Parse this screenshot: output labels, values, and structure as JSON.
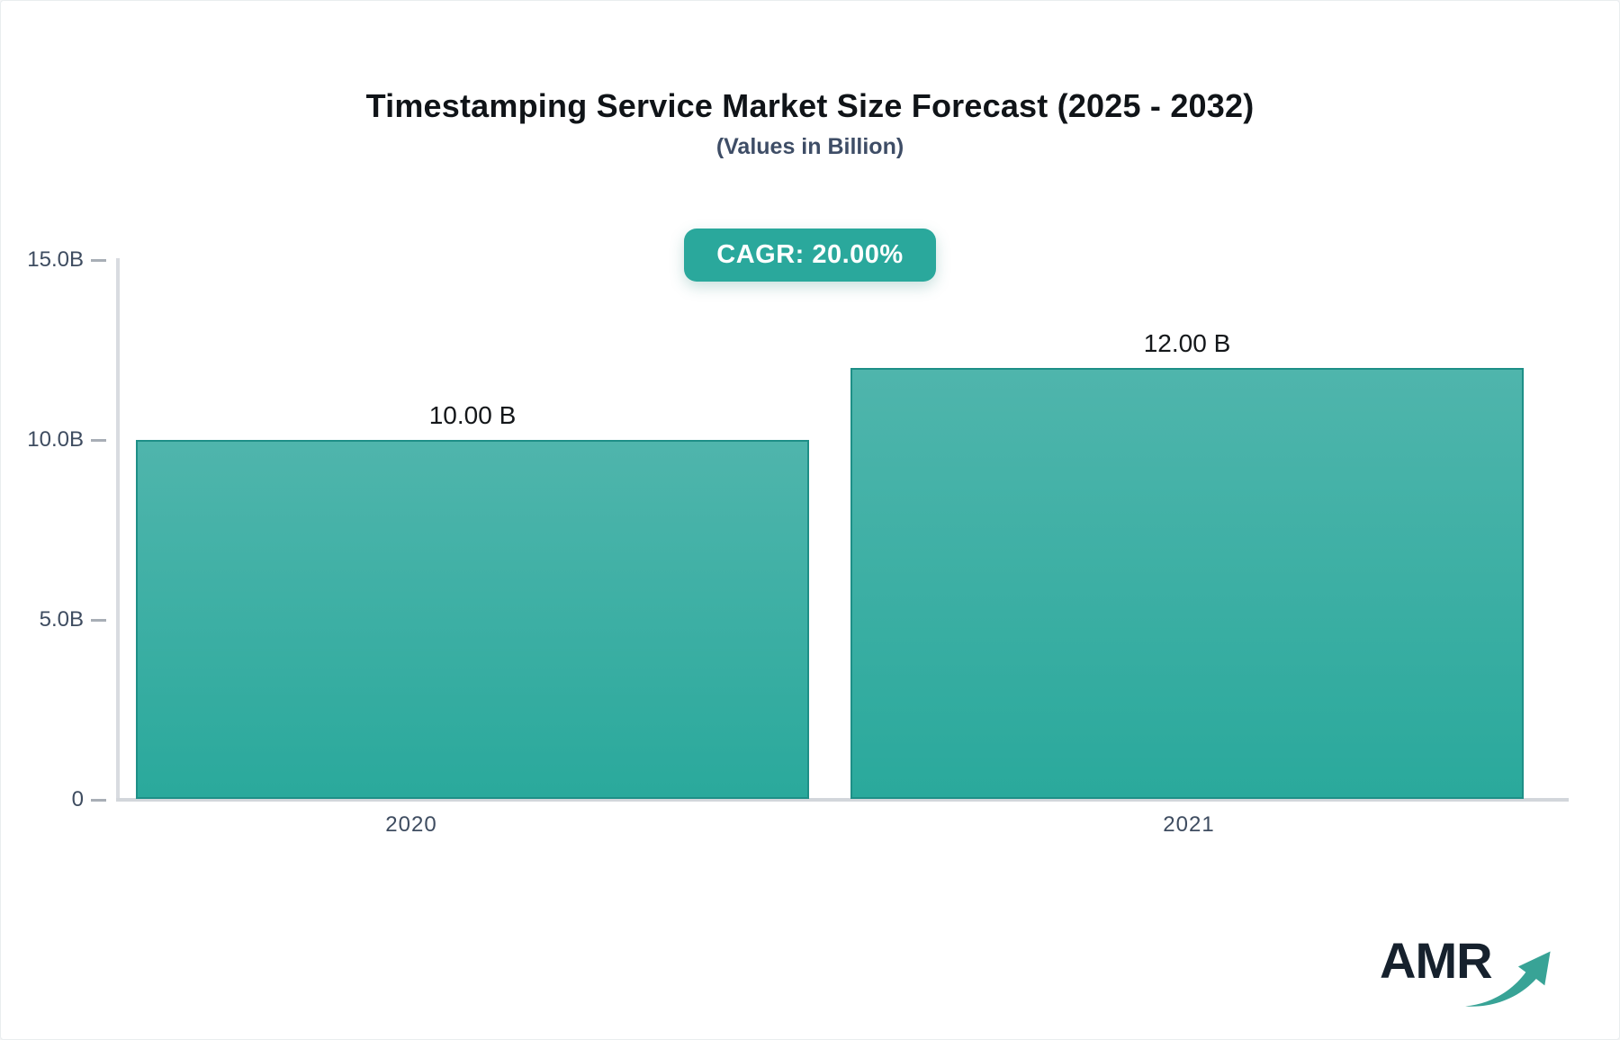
{
  "header": {
    "title": "Timestamping Service Market Size Forecast (2025 - 2032)",
    "subtitle": "(Values in Billion)",
    "cagr_badge": {
      "label": "CAGR: 20.00%",
      "background": "#2aa89c",
      "text_color": "#ffffff"
    }
  },
  "chart_data": {
    "type": "bar",
    "title": "Timestamping Service Market Size Forecast (2025 - 2032)",
    "subtitle": "(Values in Billion)",
    "unit": "Billion",
    "cagr_percent": 20.0,
    "categories": [
      "2020",
      "2021"
    ],
    "values": [
      10.0,
      12.0
    ],
    "value_labels": [
      "10.00 B",
      "12.00 B"
    ],
    "ylim": [
      0,
      15
    ],
    "yticks": [
      0,
      5,
      10,
      15
    ],
    "ytick_labels": [
      "0",
      "5.0B",
      "10.0B",
      "15.0B"
    ],
    "xlabel": "",
    "ylabel": "",
    "grid": false,
    "legend": "none",
    "bar_color_top": "#4fb5ac",
    "bar_color_bottom": "#2aa99c",
    "bar_border_color": "#1e8f87"
  },
  "logo": {
    "text": "AMR",
    "text_color": "#16212d",
    "arrow_color": "#38a396",
    "arrow_icon": "trend-up-arrow"
  }
}
